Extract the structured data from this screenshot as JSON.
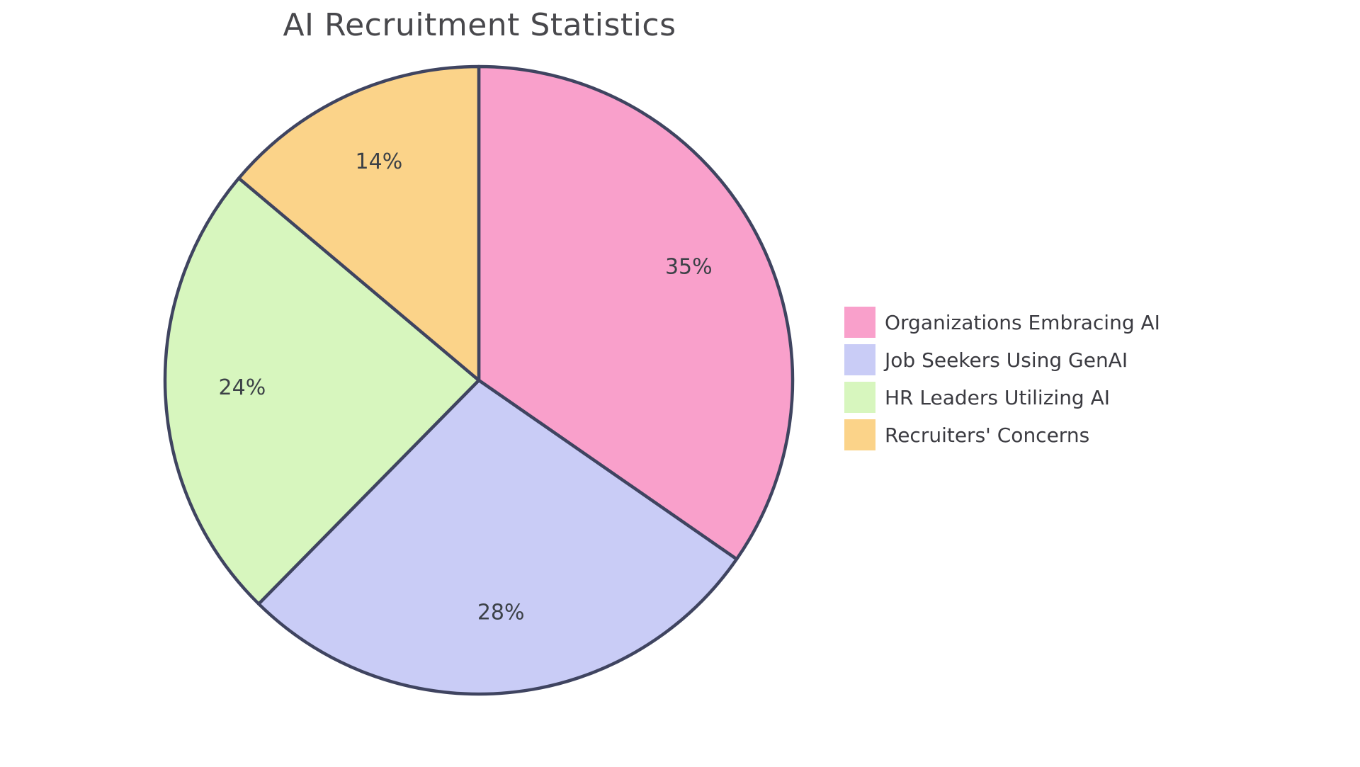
{
  "chart_data": {
    "type": "pie",
    "title": "AI Recruitment Statistics",
    "categories": [
      "Organizations Embracing AI",
      "Job Seekers Using GenAI",
      "HR Leaders Utilizing AI",
      "Recruiters' Concerns"
    ],
    "values": [
      35,
      28,
      24,
      14
    ],
    "percent_labels": [
      "35%",
      "28%",
      "24%",
      "14%"
    ],
    "colors": [
      "#F9A0CB",
      "#C9CCF6",
      "#D7F6BE",
      "#FBD389"
    ],
    "outline_color": "#3F4460",
    "label_color": "#3C4147",
    "title_color": "#48484C",
    "legend_text_color": "#3B3B41",
    "legend_position": "right",
    "start_angle_deg": 90,
    "direction": "clockwise",
    "grid": false
  }
}
